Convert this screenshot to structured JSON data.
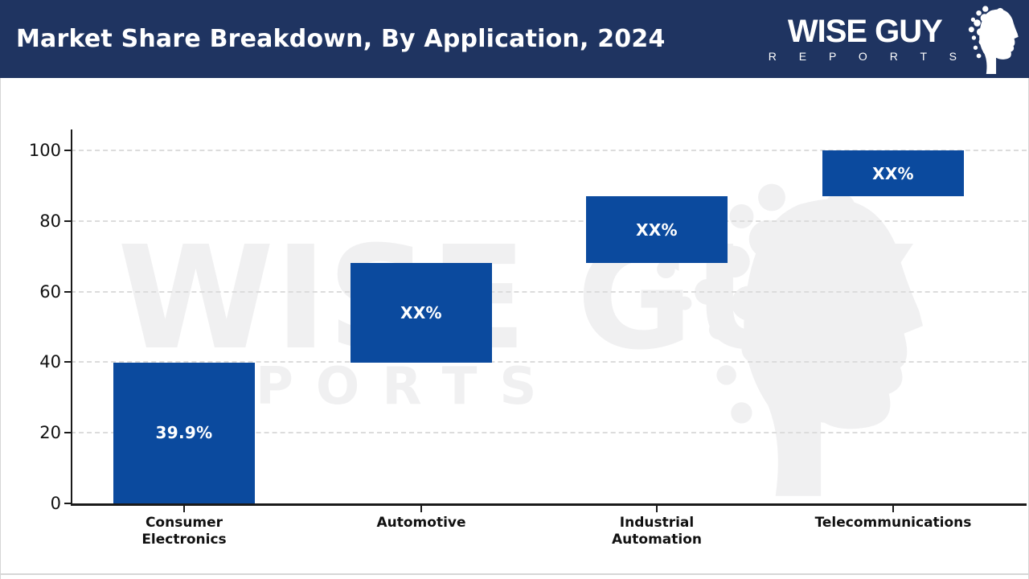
{
  "header": {
    "title": "Market Share Breakdown, By Application, 2024",
    "brand": {
      "name": "WISE GUY",
      "subtitle": "R E P O R T S"
    }
  },
  "watermark": {
    "line1": "WISE GUY",
    "line2": "REPORTS"
  },
  "chart_data": {
    "type": "bar",
    "subtype": "waterfall-floating-bars",
    "title": "Market Share Breakdown, By Application, 2024",
    "categories": [
      "Consumer\nElectronics",
      "Automotive",
      "Industrial\nAutomation",
      "Telecommunications"
    ],
    "segments": [
      {
        "category": "Consumer Electronics",
        "start": 0,
        "end": 39.9,
        "label": "39.9%"
      },
      {
        "category": "Automotive",
        "start": 39.9,
        "end": 68,
        "label": "XX%"
      },
      {
        "category": "Industrial Automation",
        "start": 68,
        "end": 87,
        "label": "XX%"
      },
      {
        "category": "Telecommunications",
        "start": 87,
        "end": 100,
        "label": "XX%"
      }
    ],
    "yticks": [
      0,
      20,
      40,
      60,
      80,
      100
    ],
    "ylim": [
      0,
      100
    ],
    "grid": "horizontal-dashed",
    "legend": "none",
    "bar_color": "#0b4a9e",
    "value_label_color": "#ffffff"
  },
  "colors": {
    "header_bg": "#1f3461",
    "bar": "#0b4a9e",
    "axis": "#1a1a1a",
    "grid": "#dcdcdc",
    "watermark": "#f0f0f1",
    "frame_border": "#d6d6d6"
  }
}
